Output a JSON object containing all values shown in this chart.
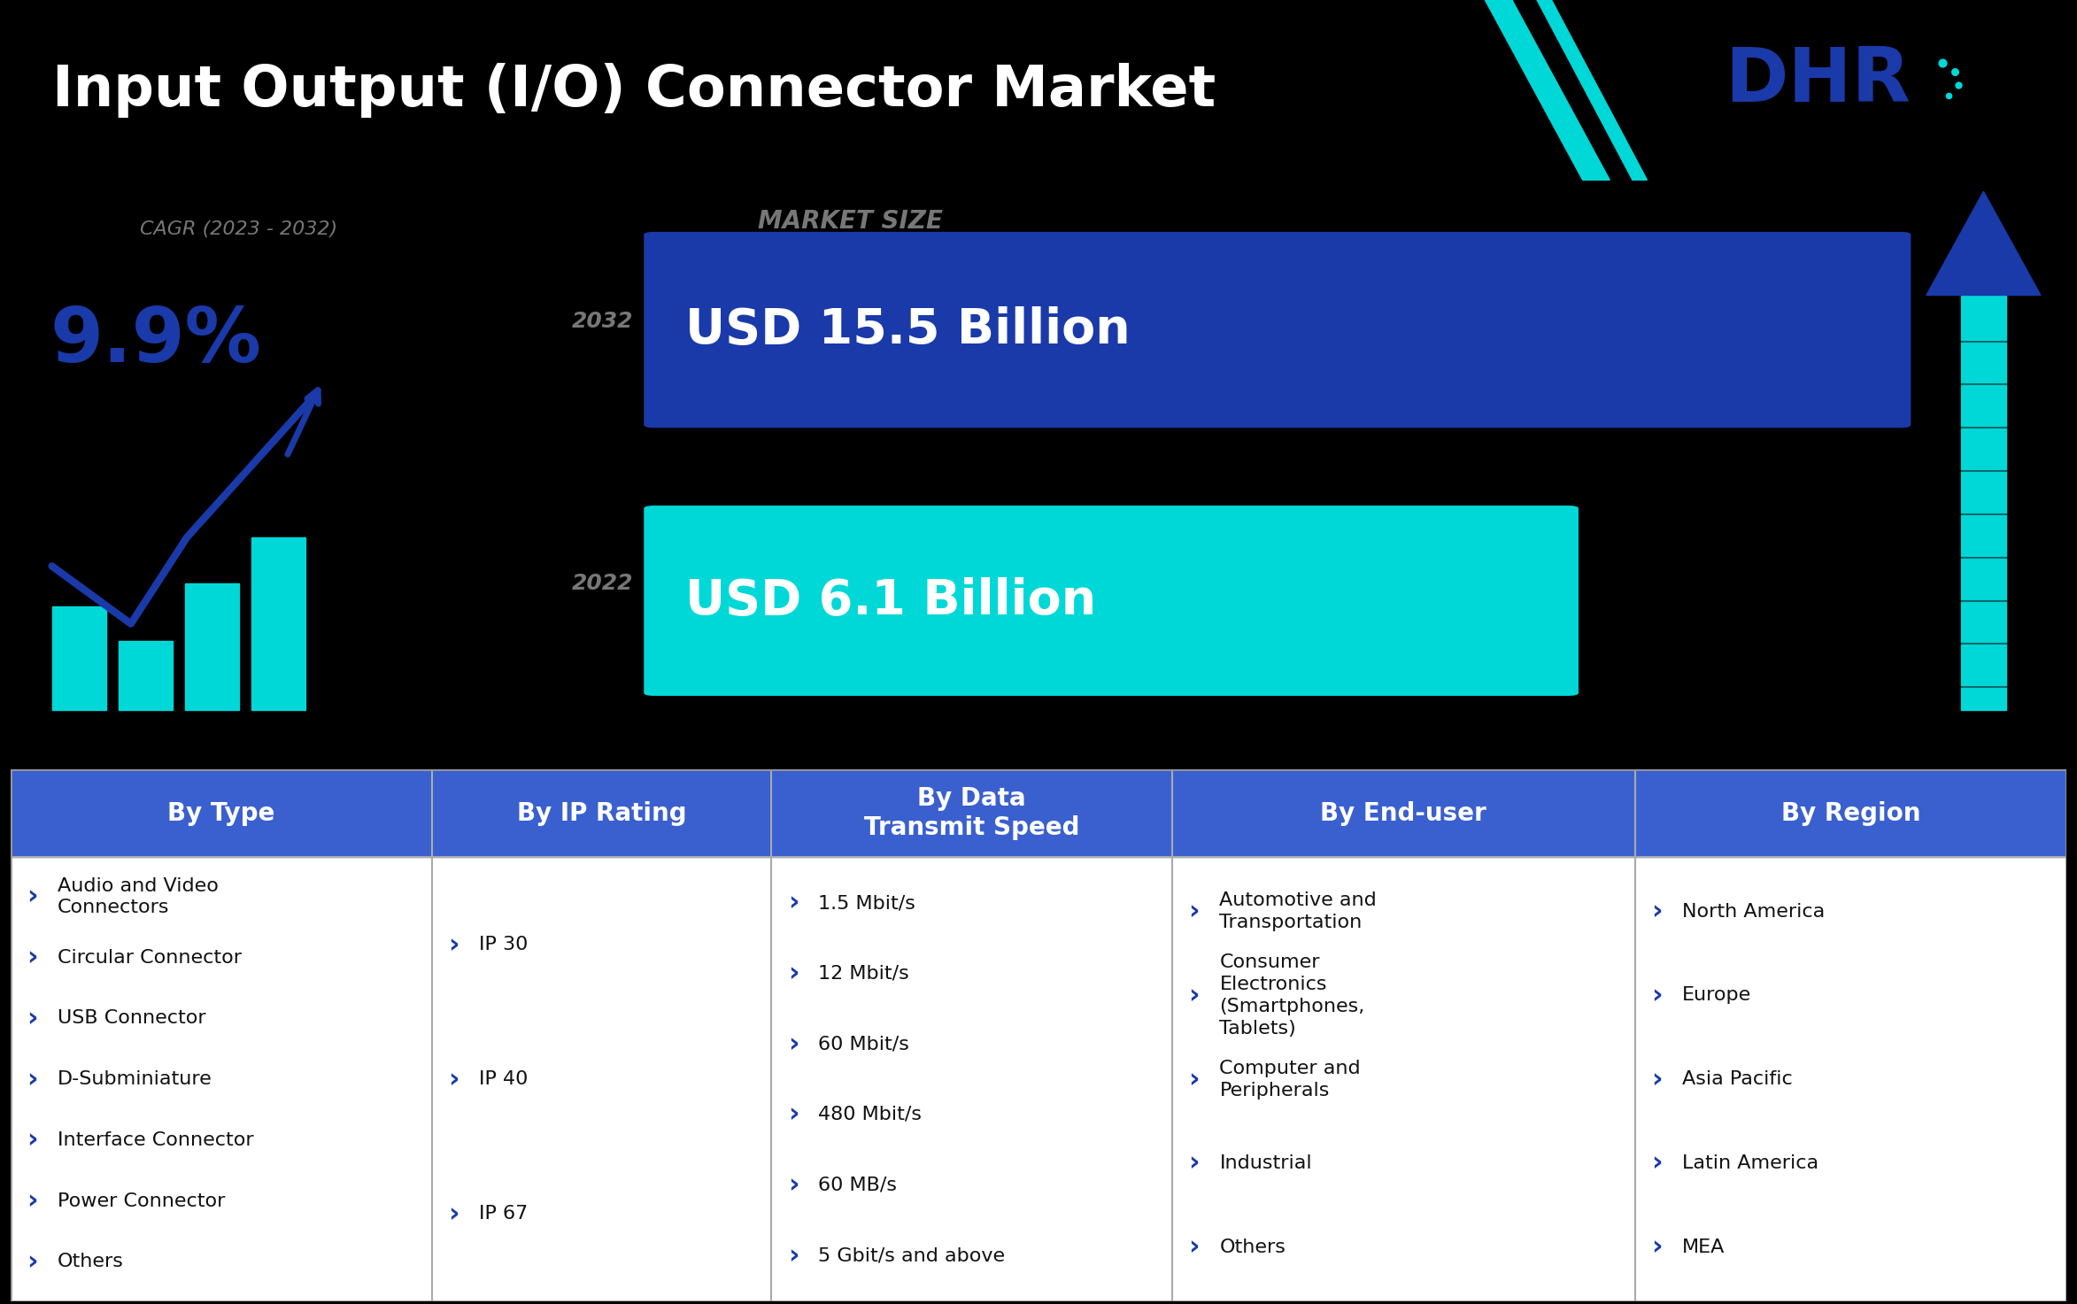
{
  "title": "Input Output (I/O) Connector Market",
  "bg_color": "#000000",
  "header_bg": "#1a52c8",
  "header_text_color": "#ffffff",
  "cyan_color": "#00d8d8",
  "dark_blue": "#1a3aaa",
  "medium_blue": "#2255cc",
  "cagr_label": "CAGR (2023 - 2032)",
  "cagr_value": "9.9%",
  "market_size_label": "MARKET SIZE",
  "year1": "2032",
  "value1": "USD 15.5 Billion",
  "year2": "2022",
  "value2": "USD 6.1 Billion",
  "col_headers": [
    "By Type",
    "By IP Rating",
    "By Data\nTransmit Speed",
    "By End-user",
    "By Region"
  ],
  "col_items": [
    [
      "Audio and Video\nConnectors",
      "Circular Connector",
      "USB Connector",
      "D-Subminiature",
      "Interface Connector",
      "Power Connector",
      "Others"
    ],
    [
      "IP 30",
      "IP 40",
      "IP 67"
    ],
    [
      "1.5 Mbit/s",
      "12 Mbit/s",
      "60 Mbit/s",
      "480 Mbit/s",
      "60 MB/s",
      "5 Gbit/s and above"
    ],
    [
      "Automotive and\nTransportation",
      "Consumer\nElectronics\n(Smartphones,\nTablets)",
      "Computer and\nPeripherals",
      "Industrial",
      "Others"
    ],
    [
      "North America",
      "Europe",
      "Asia Pacific",
      "Latin America",
      "MEA"
    ]
  ],
  "text_color": "#111111",
  "table_col_header_color": "#3a60d0",
  "white": "#ffffff",
  "black": "#000000",
  "light_gray": "#f0f0f0"
}
